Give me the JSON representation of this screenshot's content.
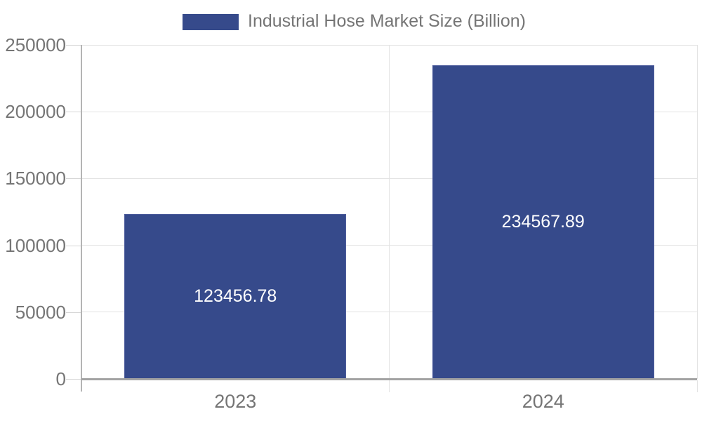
{
  "chart_data": {
    "type": "bar",
    "title": "",
    "legend": [
      "Industrial Hose Market Size (Billion)"
    ],
    "legend_position": "top",
    "categories": [
      "2023",
      "2024"
    ],
    "series": [
      {
        "name": "Industrial Hose Market Size (Billion)",
        "values": [
          123456.78,
          234567.89
        ],
        "value_labels": [
          "123456.78",
          "234567.89"
        ],
        "color": "#364a8b"
      }
    ],
    "xlabel": "",
    "ylabel": "",
    "ylim": [
      0,
      250000
    ],
    "yticks": [
      0,
      50000,
      100000,
      150000,
      200000,
      250000
    ],
    "ytick_labels": [
      "0",
      "50000",
      "100000",
      "150000",
      "200000",
      "250000"
    ],
    "grid": true,
    "colors": {
      "bar_fill": "#364a8b",
      "bar_edge": "#4d5c9c",
      "bar_label_text": "#ffffff",
      "axis_text": "#757575",
      "gridline": "#e3e3e3",
      "axis_line": "#b4b4b4",
      "baseline": "#a3a3a3",
      "background": "#ffffff"
    }
  }
}
